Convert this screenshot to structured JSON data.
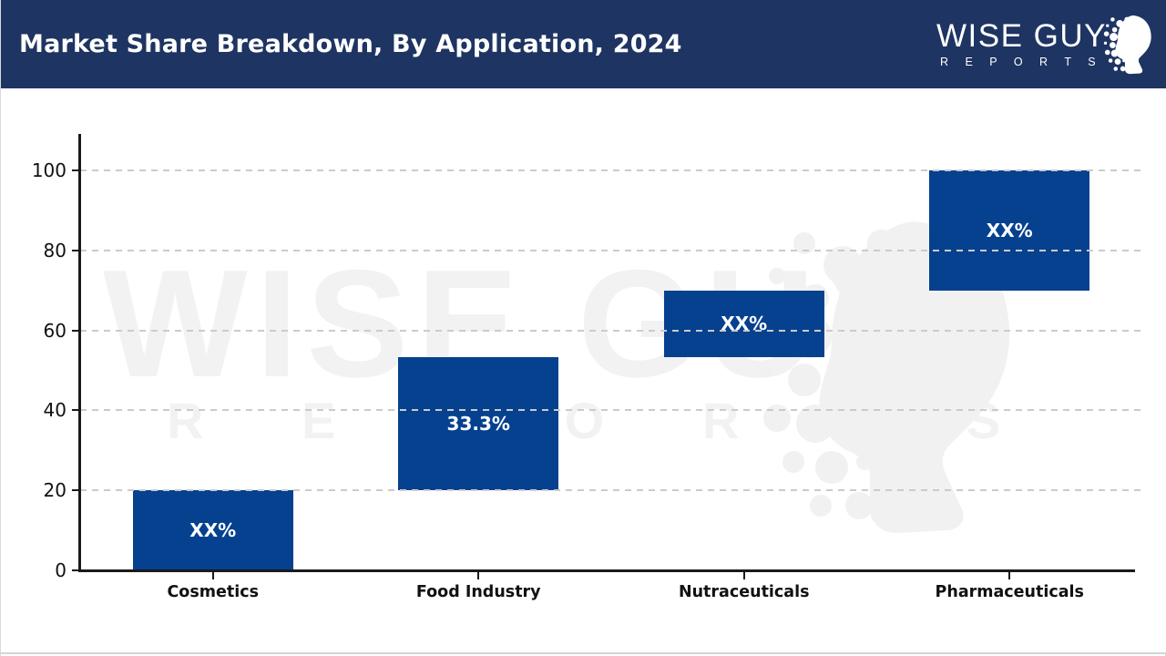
{
  "header": {
    "title": "Market Share Breakdown, By Application, 2024",
    "logo": {
      "wordmark": "WISE GUY",
      "subtext": "R E P O R T S"
    }
  },
  "watermark": {
    "wordmark": "WISE GUY",
    "subtext": "R E P O R T S"
  },
  "chart_data": {
    "type": "bar",
    "variant": "floating-waterfall",
    "title": "Market Share Breakdown, By Application, 2024",
    "categories": [
      "Cosmetics",
      "Food Industry",
      "Nutraceuticals",
      "Pharmaceuticals"
    ],
    "segments": [
      {
        "category": "Cosmetics",
        "start": 0,
        "end": 20,
        "label": "XX%"
      },
      {
        "category": "Food Industry",
        "start": 20,
        "end": 53.3,
        "label": "33.3%"
      },
      {
        "category": "Nutraceuticals",
        "start": 53.3,
        "end": 70,
        "label": "XX%"
      },
      {
        "category": "Pharmaceuticals",
        "start": 70,
        "end": 100,
        "label": "XX%"
      }
    ],
    "yticks": [
      0,
      20,
      40,
      60,
      80,
      100
    ],
    "ylim": [
      0,
      106
    ],
    "xlabel": "",
    "ylabel": "",
    "legend": "none",
    "grid": "horizontal-dashed",
    "colors": {
      "bar": "#05418f",
      "grid": "#cbcbcb",
      "axis": "#1a1a1a",
      "bar_label": "#ffffff",
      "header_bg": "#1e3462",
      "watermark": "#f2f2f2"
    }
  }
}
